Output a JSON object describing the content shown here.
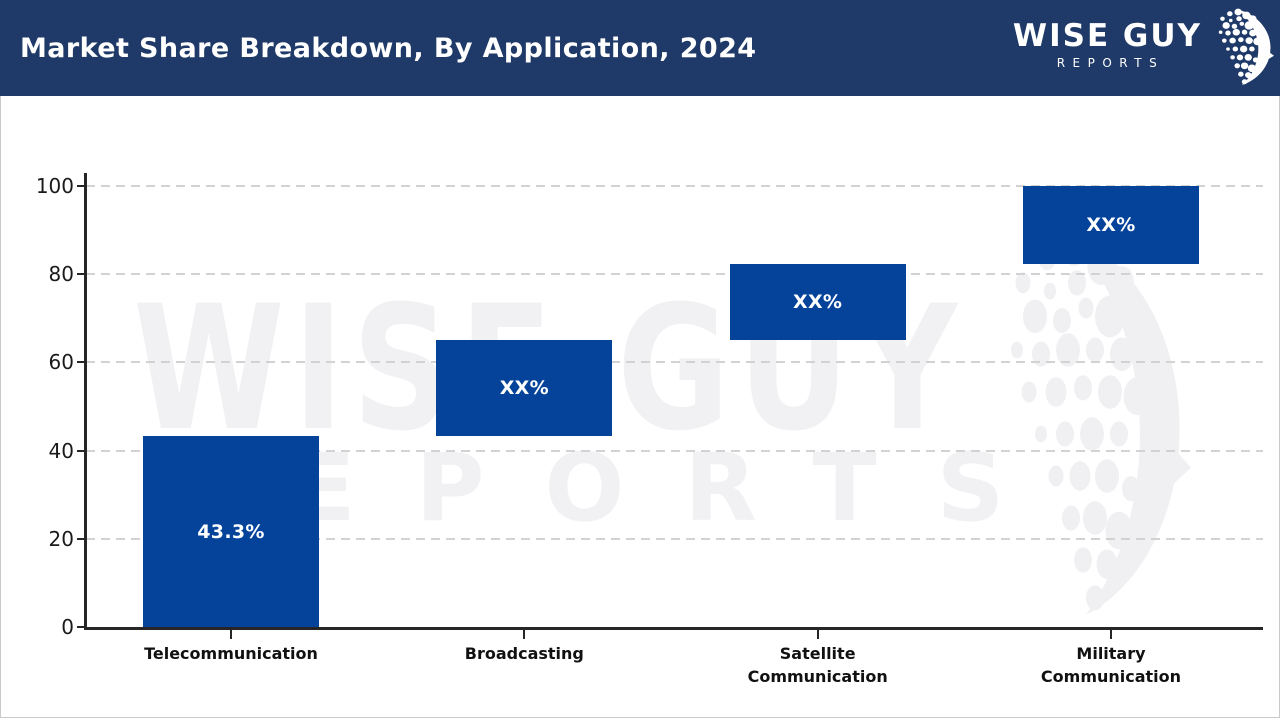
{
  "header": {
    "title": "Market Share Breakdown, By Application, 2024",
    "bg_color": "#1f3a68",
    "logo": {
      "line1": "WISE GUY",
      "line2": "REPORTS"
    }
  },
  "watermark": {
    "line1": "WISE GUY",
    "line2": "REPORTS"
  },
  "chart_data": {
    "type": "bar",
    "subtype": "waterfall",
    "title": "Market Share Breakdown, By Application, 2024",
    "categories": [
      "Telecommunication",
      "Broadcasting",
      "Satellite Communication",
      "Military Communication"
    ],
    "category_label_lines": [
      [
        "Telecommunication"
      ],
      [
        "Broadcasting"
      ],
      [
        "Satellite",
        "Communication"
      ],
      [
        "Military",
        "Communication"
      ]
    ],
    "segments": [
      {
        "category": "Telecommunication",
        "start": 0,
        "end": 43.3,
        "label": "43.3%"
      },
      {
        "category": "Broadcasting",
        "start": 43.3,
        "end": 65,
        "label": "XX%"
      },
      {
        "category": "Satellite Communication",
        "start": 65,
        "end": 82.3,
        "label": "XX%"
      },
      {
        "category": "Military Communication",
        "start": 82.3,
        "end": 100,
        "label": "XX%"
      }
    ],
    "yticks": [
      0,
      20,
      40,
      60,
      80,
      100
    ],
    "ylim": [
      0,
      103
    ],
    "xlabel": "",
    "ylabel": "",
    "grid": "horizontal-dashed",
    "legend": "none",
    "bar_color": "#05439b",
    "bar_label_color": "#ffffff",
    "axis_color": "#262626",
    "grid_color": "#d2d2d2"
  }
}
